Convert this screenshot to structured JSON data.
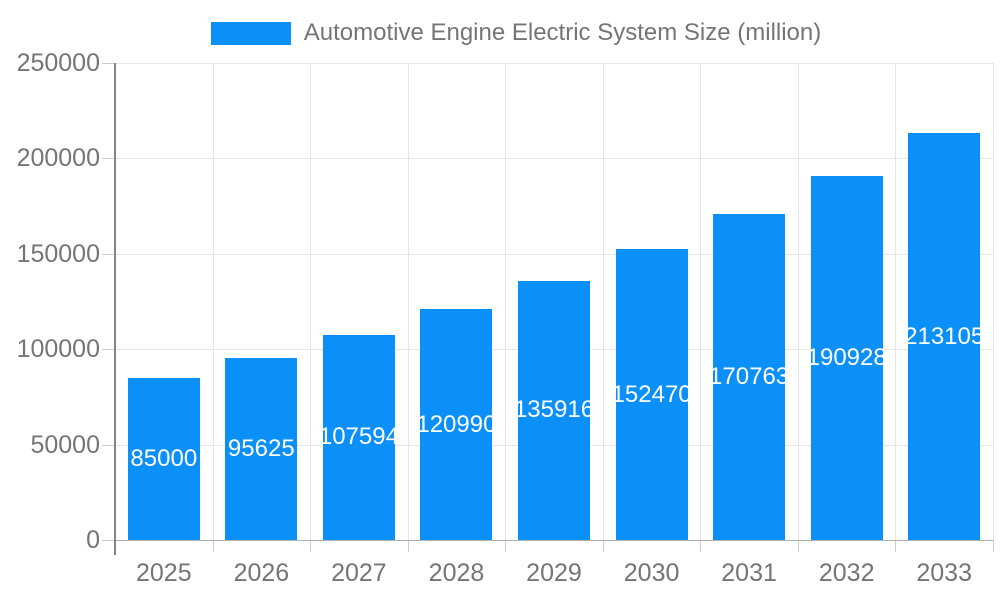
{
  "legend": {
    "label": "Automotive Engine Electric System Size (million)",
    "swatch_color": "#0a90f8"
  },
  "colors": {
    "bar": "#0a90f8",
    "background": "#ffffff",
    "grid_line": "#e6e6e6",
    "tick": "#cccccc",
    "y_axis_line": "#848484",
    "x_axis_line": "#b0b0b0",
    "label_text": "#757575",
    "value_label": "#ffffff"
  },
  "chart_data": {
    "type": "bar",
    "title": "Automotive Engine Electric System Size (million)",
    "categories": [
      "2025",
      "2026",
      "2027",
      "2028",
      "2029",
      "2030",
      "2031",
      "2032",
      "2033"
    ],
    "values": [
      85000,
      95625,
      107594,
      120990,
      135916,
      152470,
      170763,
      190928,
      213105
    ],
    "value_labels": [
      "85000",
      "95625",
      "107594",
      "120990",
      "135916",
      "152470",
      "170763",
      "190928",
      "213105"
    ],
    "xlabel": "",
    "ylabel": "",
    "ylim": [
      0,
      250000
    ],
    "ytick_step": 50000,
    "ytick_labels": [
      "0",
      "50000",
      "100000",
      "150000",
      "200000",
      "250000"
    ],
    "grid": true,
    "legend_position": "top-center",
    "value_label_position": "inside-center"
  }
}
